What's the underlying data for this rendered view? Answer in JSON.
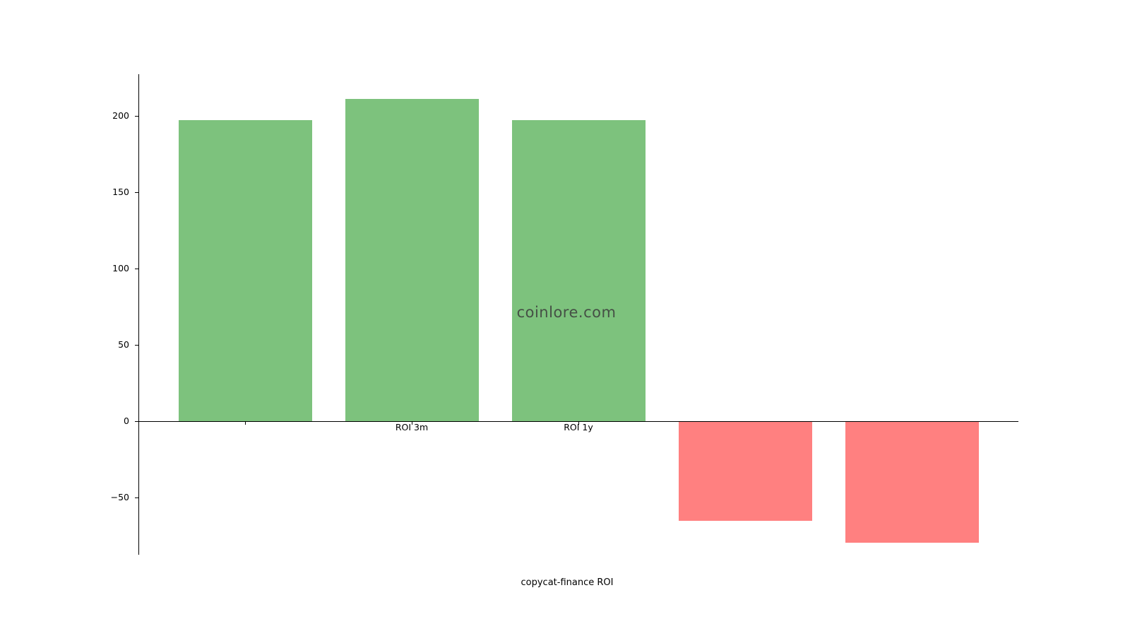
{
  "page": {
    "background": "#ffffff"
  },
  "watermark": "coinlore.com",
  "chart_data": {
    "type": "bar",
    "title": "copycat-finance ROI",
    "title_position": "bottom-center",
    "categories": [
      "",
      "ROI 3m",
      "ROI 1y",
      "",
      ""
    ],
    "values": [
      197,
      211,
      197,
      -65,
      -79
    ],
    "xlabel": "",
    "ylabel": "",
    "yticks": [
      200,
      150,
      100,
      50,
      0,
      -50
    ],
    "ytick_labels": [
      "200",
      "150",
      "100",
      "50",
      "0",
      "−50"
    ],
    "ylim": [
      -87.5,
      227.5
    ],
    "grid": false,
    "legend": "none",
    "colors": {
      "positive_bar": "#7dc27d",
      "negative_bar": "#ff8080",
      "axis": "#000000",
      "tick_label": "#000000",
      "watermark_text": "#3c3c3c",
      "title_text": "#000000"
    }
  }
}
